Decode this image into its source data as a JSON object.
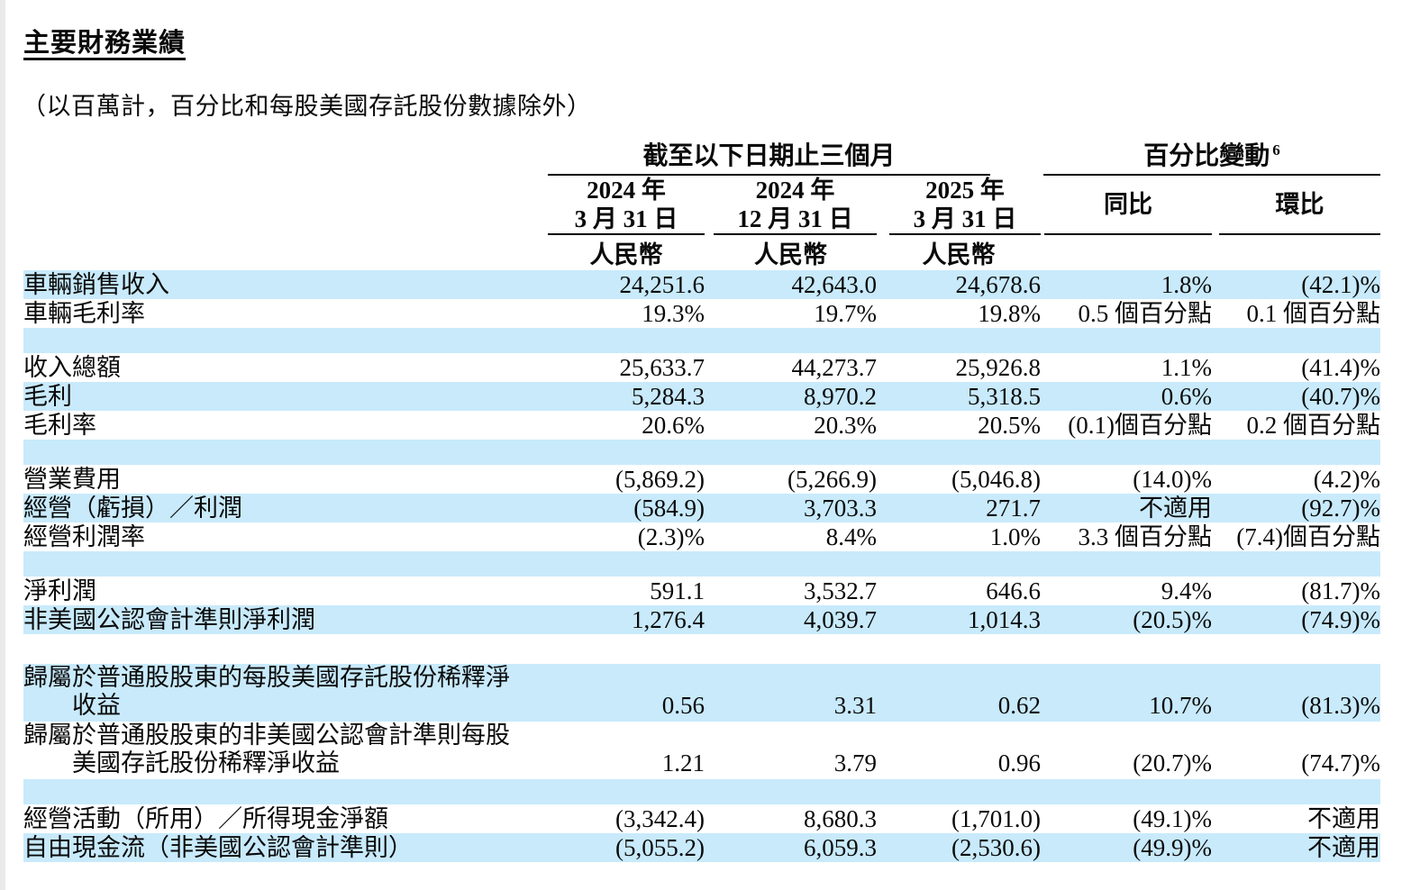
{
  "page": {
    "title": "主要財務業績",
    "units_note": "（以百萬計，百分比和每股美國存託股份數據除外）"
  },
  "table": {
    "period_group": "截至以下日期止三個月",
    "pct_group": "百分比變動",
    "pct_footnote": "6",
    "columns": [
      {
        "line1": "2024 年",
        "line2": "3 月 31 日",
        "currency": "人民幣"
      },
      {
        "line1": "2024 年",
        "line2": "12 月 31 日",
        "currency": "人民幣"
      },
      {
        "line1": "2025 年",
        "line2": "3 月 31 日",
        "currency": "人民幣"
      },
      {
        "label": "同比"
      },
      {
        "label": "環比"
      }
    ],
    "rows": [
      {
        "type": "data",
        "shade": "blue",
        "label": "車輛銷售收入",
        "values": [
          "24,251.6",
          "42,643.0",
          "24,678.6",
          "1.8%",
          "(42.1)%"
        ]
      },
      {
        "type": "data",
        "shade": "white",
        "label": "車輛毛利率",
        "values": [
          "19.3%",
          "19.7%",
          "19.8%",
          "0.5 個百分點",
          "0.1 個百分點"
        ]
      },
      {
        "type": "spacer",
        "shade": "blue"
      },
      {
        "type": "data",
        "shade": "white",
        "label": "收入總額",
        "values": [
          "25,633.7",
          "44,273.7",
          "25,926.8",
          "1.1%",
          "(41.4)%"
        ]
      },
      {
        "type": "data",
        "shade": "blue",
        "label": "毛利",
        "values": [
          "5,284.3",
          "8,970.2",
          "5,318.5",
          "0.6%",
          "(40.7)%"
        ]
      },
      {
        "type": "data",
        "shade": "white",
        "label": "毛利率",
        "values": [
          "20.6%",
          "20.3%",
          "20.5%",
          "(0.1)個百分點",
          "0.2 個百分點"
        ]
      },
      {
        "type": "spacer",
        "shade": "blue"
      },
      {
        "type": "data",
        "shade": "white",
        "label": "營業費用",
        "values": [
          "(5,869.2)",
          "(5,266.9)",
          "(5,046.8)",
          "(14.0)%",
          "(4.2)%"
        ]
      },
      {
        "type": "data",
        "shade": "blue",
        "label": "經營（虧損）／利潤",
        "values": [
          "(584.9)",
          "3,703.3",
          "271.7",
          "不適用",
          "(92.7)%"
        ]
      },
      {
        "type": "data",
        "shade": "white",
        "label": "經營利潤率",
        "values": [
          "(2.3)%",
          "8.4%",
          "1.0%",
          "3.3 個百分點",
          "(7.4)個百分點"
        ]
      },
      {
        "type": "spacer",
        "shade": "blue"
      },
      {
        "type": "data",
        "shade": "white",
        "label": "淨利潤",
        "values": [
          "591.1",
          "3,532.7",
          "646.6",
          "9.4%",
          "(81.7)%"
        ]
      },
      {
        "type": "data",
        "shade": "blue",
        "label": "非美國公認會計準則淨利潤",
        "values": [
          "1,276.4",
          "4,039.7",
          "1,014.3",
          "(20.5)%",
          "(74.9)%"
        ]
      },
      {
        "type": "spacer",
        "shade": "white"
      },
      {
        "type": "data2",
        "shade": "blue",
        "label": "歸屬於普通股股東的每股美國存託股份稀釋淨",
        "label2": "收益",
        "values": [
          "0.56",
          "3.31",
          "0.62",
          "10.7%",
          "(81.3)%"
        ]
      },
      {
        "type": "data2",
        "shade": "white",
        "label": "歸屬於普通股股東的非美國公認會計準則每股",
        "label2": "美國存託股份稀釋淨收益",
        "values": [
          "1.21",
          "3.79",
          "0.96",
          "(20.7)%",
          "(74.7)%"
        ]
      },
      {
        "type": "spacer",
        "shade": "blue"
      },
      {
        "type": "data",
        "shade": "white",
        "label": "經營活動（所用）／所得現金淨額",
        "values": [
          "(3,342.4)",
          "8,680.3",
          "(1,701.0)",
          "(49.1)%",
          "不適用"
        ]
      },
      {
        "type": "data",
        "shade": "blue",
        "label": "自由現金流（非美國公認會計準則）",
        "values": [
          "(5,055.2)",
          "6,059.3",
          "(2,530.6)",
          "(49.9)%",
          "不適用"
        ]
      }
    ]
  }
}
